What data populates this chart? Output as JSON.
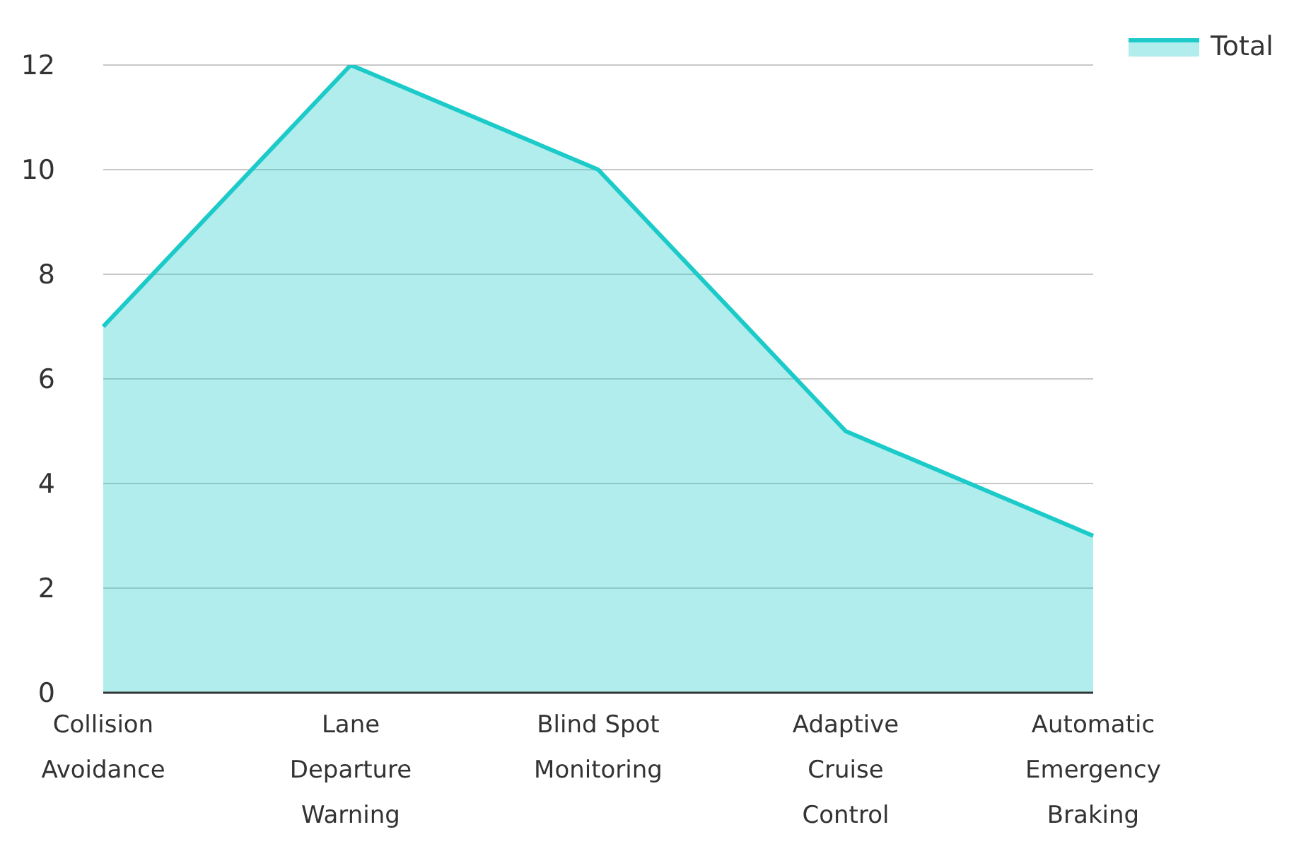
{
  "chart_data": {
    "type": "area",
    "categories": [
      "Collision Avoidance",
      "Lane Departure Warning",
      "Blind Spot Monitoring",
      "Adaptive Cruise Control",
      "Automatic Emergency Braking"
    ],
    "series": [
      {
        "name": "Total",
        "color": "#1ccbc9",
        "values": [
          7,
          12,
          10,
          5,
          3
        ]
      }
    ],
    "ylim": [
      0,
      12
    ],
    "yticks": [
      0,
      2,
      4,
      6,
      8,
      10,
      12
    ],
    "grid": "y",
    "legend": "top right"
  }
}
